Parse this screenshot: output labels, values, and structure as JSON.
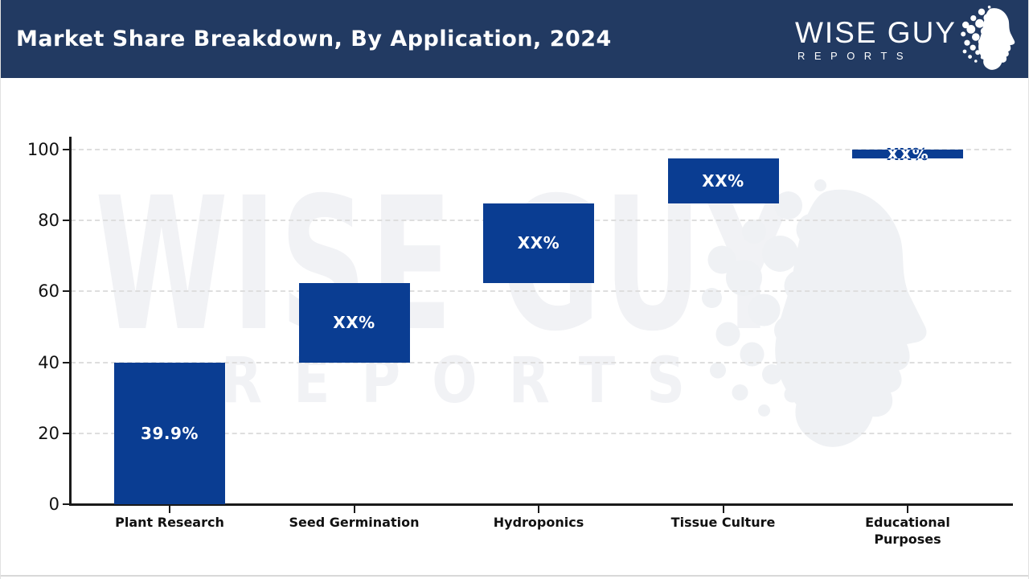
{
  "header": {
    "title": "Market Share Breakdown, By Application, 2024",
    "logo": {
      "line1": "WISE GUY",
      "line2": "REPORTS"
    }
  },
  "watermark": {
    "line1": "WISE GUY",
    "line2": "REPORTS"
  },
  "chart_data": {
    "type": "bar",
    "variant": "floating segmented bars (waterfall-style market share breakdown)",
    "title": "Market Share Breakdown, By Application, 2024",
    "categories": [
      "Plant Research",
      "Seed Germination",
      "Hydroponics",
      "Tissue Culture",
      "Educational\nPurposes"
    ],
    "segments": [
      [
        0,
        39.9
      ],
      [
        39.9,
        62.4
      ],
      [
        62.4,
        84.9
      ],
      [
        84.9,
        97.5
      ],
      [
        97.5,
        100
      ]
    ],
    "values": [
      39.9,
      22.5,
      22.5,
      12.6,
      2.5
    ],
    "labels": [
      "39.9%",
      "XX%",
      "XX%",
      "XX%",
      "XX%"
    ],
    "xlabel": "",
    "ylabel": "",
    "ylim": [
      0,
      100
    ],
    "yticks": [
      0,
      20,
      40,
      60,
      80,
      100
    ],
    "grid": "horizontal dashed",
    "legend": "none",
    "bar_color": "#0A3D92",
    "axis_color": "#1a1a1a"
  }
}
